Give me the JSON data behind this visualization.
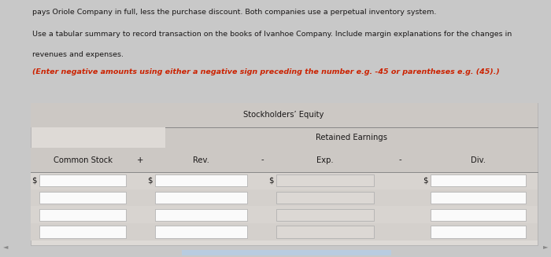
{
  "line1": "pays Oriole Company in full, less the purchase discount. Both companies use a perpetual inventory system.",
  "line2a": "Use a tabular summary to record transaction on the books of Ivanhoe Company. Include margin explanations for the changes in",
  "line2b": "revenues and expenses. ",
  "line2_bold": "(Enter negative amounts using either a negative sign preceding the number e.g. -45 or parentheses e.g. (45).)",
  "header1": "Stockholders’ Equity",
  "header2": "Retained Earnings",
  "col_labels": [
    "Common Stock",
    "+",
    "Rev.",
    "-",
    "Exp.",
    "-",
    "Div."
  ],
  "num_data_rows": 4,
  "fig_bg": "#c8c8c8",
  "page_bg": "#f0eeec",
  "table_header_bg": "#ccc8c4",
  "table_row_bg": "#dedad6",
  "cell_white": "#fafafa",
  "cell_tinted": "#dcd8d4",
  "scroll_color": "#b8cce0",
  "text_color": "#1a1818",
  "bold_color": "#cc2200",
  "sep_color": "#888888",
  "border_color": "#aaaaaa",
  "font_size_text": 6.8,
  "font_size_table": 7.2
}
